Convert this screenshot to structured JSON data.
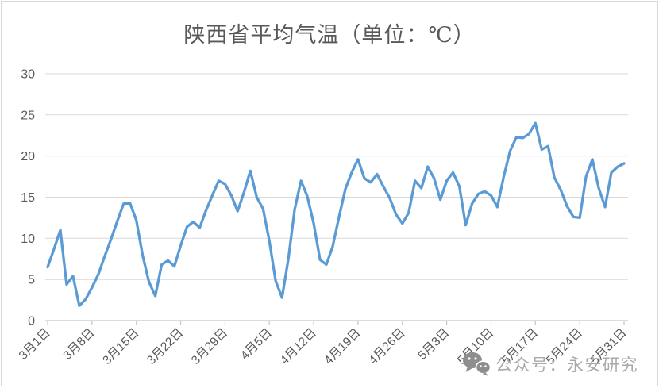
{
  "chart": {
    "title": "陕西省平均气温（单位：℃）",
    "watermark_text": "公众号：永安研究",
    "colors": {
      "line": "#5B9BD5",
      "grid": "#D9D9D9",
      "axis": "#C6C6C6",
      "tick": "#C6C6C6",
      "label_text": "#595959",
      "title_text": "#595959",
      "watermark": "#A9A9A9",
      "watermark_icon": "#8E8E8E",
      "background": "#FFFFFF",
      "border": "#D8D8D8"
    }
  },
  "chart_data": {
    "type": "line",
    "title": "陕西省平均气温（单位：℃）",
    "unit": "℃",
    "x_start": "3月1日",
    "x_end": "5月31日",
    "x_interval": "daily",
    "x_tick_every": 7,
    "x_tick_labels": [
      "3月1日",
      "3月8日",
      "3月15日",
      "3月22日",
      "3月29日",
      "4月5日",
      "4月12日",
      "4月19日",
      "4月26日",
      "5月3日",
      "5月10日",
      "5月17日",
      "5月24日",
      "5月31日"
    ],
    "ylabel": "",
    "xlabel": "",
    "ylim": [
      0,
      30
    ],
    "y_ticks": [
      0,
      5,
      10,
      15,
      20,
      25,
      30
    ],
    "grid": "horizontal",
    "legend": "none",
    "values": [
      6.5,
      8.7,
      11.0,
      4.4,
      5.4,
      1.8,
      2.6,
      4.0,
      5.6,
      7.8,
      9.9,
      12.1,
      14.2,
      14.3,
      12.2,
      7.9,
      4.7,
      3.0,
      6.8,
      7.3,
      6.6,
      9.1,
      11.4,
      12.0,
      11.3,
      13.4,
      15.2,
      17.0,
      16.6,
      15.2,
      13.3,
      15.6,
      18.2,
      15.0,
      13.6,
      9.7,
      4.8,
      2.8,
      7.5,
      13.5,
      17.0,
      15.1,
      11.8,
      7.4,
      6.8,
      9.0,
      12.6,
      16.0,
      18.0,
      19.6,
      17.3,
      16.8,
      17.8,
      16.3,
      14.9,
      12.9,
      11.8,
      13.1,
      17.0,
      16.1,
      18.7,
      17.3,
      14.7,
      17.0,
      18.0,
      16.3,
      11.6,
      14.2,
      15.4,
      15.7,
      15.2,
      13.8,
      17.5,
      20.6,
      22.3,
      22.2,
      22.7,
      24.0,
      20.8,
      21.2,
      17.4,
      15.9,
      13.9,
      12.6,
      12.5,
      17.5,
      19.6,
      16.1,
      13.8,
      18.0,
      18.7,
      19.1
    ]
  }
}
